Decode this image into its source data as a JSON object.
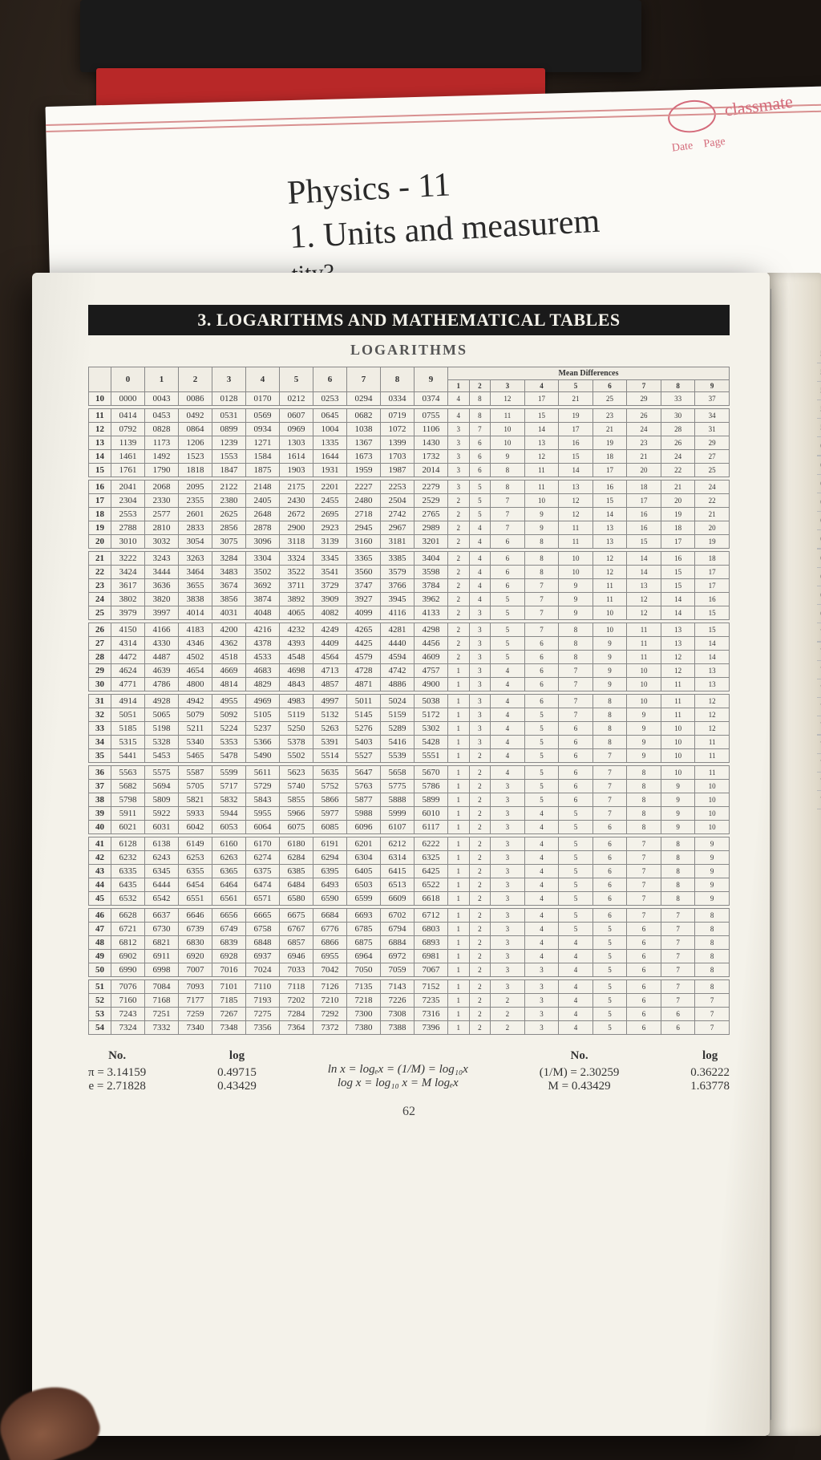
{
  "chapter_title": "3. LOGARITHMS AND MATHEMATICAL TABLES",
  "subtitle": "LOGARITHMS",
  "handwriting_line1": "Physics - 11",
  "handwriting_line2": "1. Units and measurem",
  "handwriting_line3": "                       tity?",
  "stamp_text1": "classmate",
  "stamp_text2": "Date",
  "stamp_text3": "Page",
  "meandiff_header": "Mean Differences",
  "col_headers": [
    "0",
    "1",
    "2",
    "3",
    "4",
    "5",
    "6",
    "7",
    "8",
    "9"
  ],
  "diff_headers": [
    "1",
    "2",
    "3",
    "4",
    "5",
    "6",
    "7",
    "8",
    "9"
  ],
  "page_number": "62",
  "constants": {
    "left": {
      "hd1": "No.",
      "r1": "π = 3.14159",
      "r2": "e = 2.71828"
    },
    "left2": {
      "hd1": "log",
      "r1": "0.49715",
      "r2": "0.43429"
    },
    "mid": {
      "r1": "ln x = logₑx = (1/M) = log₁₀x",
      "r2": "log x = log₁₀ x = M logₑx"
    },
    "right": {
      "hd1": "No.",
      "r1": "(1/M) = 2.30259",
      "r2": "M = 0.43429"
    },
    "right2": {
      "hd1": "log",
      "r1": "0.36222",
      "r2": "1.63778"
    }
  },
  "right_strip": [
    "55",
    "56",
    "57",
    "58",
    "59",
    "60",
    "",
    "61",
    "62",
    "63",
    "64",
    "65",
    "",
    "66",
    "67",
    "68",
    "69",
    "70",
    "",
    "71",
    "72",
    "73",
    "74",
    "75",
    "",
    "76",
    "77",
    "78",
    "79"
  ],
  "rows": [
    {
      "n": "10",
      "v": [
        "0000",
        "0043",
        "0086",
        "0128",
        "0170",
        "0212",
        "0253",
        "0294",
        "0334",
        "0374"
      ],
      "d": [
        "4",
        "8",
        "12",
        "17",
        "21",
        "25",
        "29",
        "33",
        "37"
      ]
    },
    {
      "n": "11",
      "v": [
        "0414",
        "0453",
        "0492",
        "0531",
        "0569",
        "0607",
        "0645",
        "0682",
        "0719",
        "0755"
      ],
      "d": [
        "4",
        "8",
        "11",
        "15",
        "19",
        "23",
        "26",
        "30",
        "34"
      ]
    },
    {
      "n": "12",
      "v": [
        "0792",
        "0828",
        "0864",
        "0899",
        "0934",
        "0969",
        "1004",
        "1038",
        "1072",
        "1106"
      ],
      "d": [
        "3",
        "7",
        "10",
        "14",
        "17",
        "21",
        "24",
        "28",
        "31"
      ]
    },
    {
      "n": "13",
      "v": [
        "1139",
        "1173",
        "1206",
        "1239",
        "1271",
        "1303",
        "1335",
        "1367",
        "1399",
        "1430"
      ],
      "d": [
        "3",
        "6",
        "10",
        "13",
        "16",
        "19",
        "23",
        "26",
        "29"
      ]
    },
    {
      "n": "14",
      "v": [
        "1461",
        "1492",
        "1523",
        "1553",
        "1584",
        "1614",
        "1644",
        "1673",
        "1703",
        "1732"
      ],
      "d": [
        "3",
        "6",
        "9",
        "12",
        "15",
        "18",
        "21",
        "24",
        "27"
      ]
    },
    {
      "n": "15",
      "v": [
        "1761",
        "1790",
        "1818",
        "1847",
        "1875",
        "1903",
        "1931",
        "1959",
        "1987",
        "2014"
      ],
      "d": [
        "3",
        "6",
        "8",
        "11",
        "14",
        "17",
        "20",
        "22",
        "25"
      ]
    },
    {
      "n": "16",
      "v": [
        "2041",
        "2068",
        "2095",
        "2122",
        "2148",
        "2175",
        "2201",
        "2227",
        "2253",
        "2279"
      ],
      "d": [
        "3",
        "5",
        "8",
        "11",
        "13",
        "16",
        "18",
        "21",
        "24"
      ]
    },
    {
      "n": "17",
      "v": [
        "2304",
        "2330",
        "2355",
        "2380",
        "2405",
        "2430",
        "2455",
        "2480",
        "2504",
        "2529"
      ],
      "d": [
        "2",
        "5",
        "7",
        "10",
        "12",
        "15",
        "17",
        "20",
        "22"
      ]
    },
    {
      "n": "18",
      "v": [
        "2553",
        "2577",
        "2601",
        "2625",
        "2648",
        "2672",
        "2695",
        "2718",
        "2742",
        "2765"
      ],
      "d": [
        "2",
        "5",
        "7",
        "9",
        "12",
        "14",
        "16",
        "19",
        "21"
      ]
    },
    {
      "n": "19",
      "v": [
        "2788",
        "2810",
        "2833",
        "2856",
        "2878",
        "2900",
        "2923",
        "2945",
        "2967",
        "2989"
      ],
      "d": [
        "2",
        "4",
        "7",
        "9",
        "11",
        "13",
        "16",
        "18",
        "20"
      ]
    },
    {
      "n": "20",
      "v": [
        "3010",
        "3032",
        "3054",
        "3075",
        "3096",
        "3118",
        "3139",
        "3160",
        "3181",
        "3201"
      ],
      "d": [
        "2",
        "4",
        "6",
        "8",
        "11",
        "13",
        "15",
        "17",
        "19"
      ]
    },
    {
      "n": "21",
      "v": [
        "3222",
        "3243",
        "3263",
        "3284",
        "3304",
        "3324",
        "3345",
        "3365",
        "3385",
        "3404"
      ],
      "d": [
        "2",
        "4",
        "6",
        "8",
        "10",
        "12",
        "14",
        "16",
        "18"
      ]
    },
    {
      "n": "22",
      "v": [
        "3424",
        "3444",
        "3464",
        "3483",
        "3502",
        "3522",
        "3541",
        "3560",
        "3579",
        "3598"
      ],
      "d": [
        "2",
        "4",
        "6",
        "8",
        "10",
        "12",
        "14",
        "15",
        "17"
      ]
    },
    {
      "n": "23",
      "v": [
        "3617",
        "3636",
        "3655",
        "3674",
        "3692",
        "3711",
        "3729",
        "3747",
        "3766",
        "3784"
      ],
      "d": [
        "2",
        "4",
        "6",
        "7",
        "9",
        "11",
        "13",
        "15",
        "17"
      ]
    },
    {
      "n": "24",
      "v": [
        "3802",
        "3820",
        "3838",
        "3856",
        "3874",
        "3892",
        "3909",
        "3927",
        "3945",
        "3962"
      ],
      "d": [
        "2",
        "4",
        "5",
        "7",
        "9",
        "11",
        "12",
        "14",
        "16"
      ]
    },
    {
      "n": "25",
      "v": [
        "3979",
        "3997",
        "4014",
        "4031",
        "4048",
        "4065",
        "4082",
        "4099",
        "4116",
        "4133"
      ],
      "d": [
        "2",
        "3",
        "5",
        "7",
        "9",
        "10",
        "12",
        "14",
        "15"
      ]
    },
    {
      "n": "26",
      "v": [
        "4150",
        "4166",
        "4183",
        "4200",
        "4216",
        "4232",
        "4249",
        "4265",
        "4281",
        "4298"
      ],
      "d": [
        "2",
        "3",
        "5",
        "7",
        "8",
        "10",
        "11",
        "13",
        "15"
      ]
    },
    {
      "n": "27",
      "v": [
        "4314",
        "4330",
        "4346",
        "4362",
        "4378",
        "4393",
        "4409",
        "4425",
        "4440",
        "4456"
      ],
      "d": [
        "2",
        "3",
        "5",
        "6",
        "8",
        "9",
        "11",
        "13",
        "14"
      ]
    },
    {
      "n": "28",
      "v": [
        "4472",
        "4487",
        "4502",
        "4518",
        "4533",
        "4548",
        "4564",
        "4579",
        "4594",
        "4609"
      ],
      "d": [
        "2",
        "3",
        "5",
        "6",
        "8",
        "9",
        "11",
        "12",
        "14"
      ]
    },
    {
      "n": "29",
      "v": [
        "4624",
        "4639",
        "4654",
        "4669",
        "4683",
        "4698",
        "4713",
        "4728",
        "4742",
        "4757"
      ],
      "d": [
        "1",
        "3",
        "4",
        "6",
        "7",
        "9",
        "10",
        "12",
        "13"
      ]
    },
    {
      "n": "30",
      "v": [
        "4771",
        "4786",
        "4800",
        "4814",
        "4829",
        "4843",
        "4857",
        "4871",
        "4886",
        "4900"
      ],
      "d": [
        "1",
        "3",
        "4",
        "6",
        "7",
        "9",
        "10",
        "11",
        "13"
      ]
    },
    {
      "n": "31",
      "v": [
        "4914",
        "4928",
        "4942",
        "4955",
        "4969",
        "4983",
        "4997",
        "5011",
        "5024",
        "5038"
      ],
      "d": [
        "1",
        "3",
        "4",
        "6",
        "7",
        "8",
        "10",
        "11",
        "12"
      ]
    },
    {
      "n": "32",
      "v": [
        "5051",
        "5065",
        "5079",
        "5092",
        "5105",
        "5119",
        "5132",
        "5145",
        "5159",
        "5172"
      ],
      "d": [
        "1",
        "3",
        "4",
        "5",
        "7",
        "8",
        "9",
        "11",
        "12"
      ]
    },
    {
      "n": "33",
      "v": [
        "5185",
        "5198",
        "5211",
        "5224",
        "5237",
        "5250",
        "5263",
        "5276",
        "5289",
        "5302"
      ],
      "d": [
        "1",
        "3",
        "4",
        "5",
        "6",
        "8",
        "9",
        "10",
        "12"
      ]
    },
    {
      "n": "34",
      "v": [
        "5315",
        "5328",
        "5340",
        "5353",
        "5366",
        "5378",
        "5391",
        "5403",
        "5416",
        "5428"
      ],
      "d": [
        "1",
        "3",
        "4",
        "5",
        "6",
        "8",
        "9",
        "10",
        "11"
      ]
    },
    {
      "n": "35",
      "v": [
        "5441",
        "5453",
        "5465",
        "5478",
        "5490",
        "5502",
        "5514",
        "5527",
        "5539",
        "5551"
      ],
      "d": [
        "1",
        "2",
        "4",
        "5",
        "6",
        "7",
        "9",
        "10",
        "11"
      ]
    },
    {
      "n": "36",
      "v": [
        "5563",
        "5575",
        "5587",
        "5599",
        "5611",
        "5623",
        "5635",
        "5647",
        "5658",
        "5670"
      ],
      "d": [
        "1",
        "2",
        "4",
        "5",
        "6",
        "7",
        "8",
        "10",
        "11"
      ]
    },
    {
      "n": "37",
      "v": [
        "5682",
        "5694",
        "5705",
        "5717",
        "5729",
        "5740",
        "5752",
        "5763",
        "5775",
        "5786"
      ],
      "d": [
        "1",
        "2",
        "3",
        "5",
        "6",
        "7",
        "8",
        "9",
        "10"
      ]
    },
    {
      "n": "38",
      "v": [
        "5798",
        "5809",
        "5821",
        "5832",
        "5843",
        "5855",
        "5866",
        "5877",
        "5888",
        "5899"
      ],
      "d": [
        "1",
        "2",
        "3",
        "5",
        "6",
        "7",
        "8",
        "9",
        "10"
      ]
    },
    {
      "n": "39",
      "v": [
        "5911",
        "5922",
        "5933",
        "5944",
        "5955",
        "5966",
        "5977",
        "5988",
        "5999",
        "6010"
      ],
      "d": [
        "1",
        "2",
        "3",
        "4",
        "5",
        "7",
        "8",
        "9",
        "10"
      ]
    },
    {
      "n": "40",
      "v": [
        "6021",
        "6031",
        "6042",
        "6053",
        "6064",
        "6075",
        "6085",
        "6096",
        "6107",
        "6117"
      ],
      "d": [
        "1",
        "2",
        "3",
        "4",
        "5",
        "6",
        "8",
        "9",
        "10"
      ]
    },
    {
      "n": "41",
      "v": [
        "6128",
        "6138",
        "6149",
        "6160",
        "6170",
        "6180",
        "6191",
        "6201",
        "6212",
        "6222"
      ],
      "d": [
        "1",
        "2",
        "3",
        "4",
        "5",
        "6",
        "7",
        "8",
        "9"
      ]
    },
    {
      "n": "42",
      "v": [
        "6232",
        "6243",
        "6253",
        "6263",
        "6274",
        "6284",
        "6294",
        "6304",
        "6314",
        "6325"
      ],
      "d": [
        "1",
        "2",
        "3",
        "4",
        "5",
        "6",
        "7",
        "8",
        "9"
      ]
    },
    {
      "n": "43",
      "v": [
        "6335",
        "6345",
        "6355",
        "6365",
        "6375",
        "6385",
        "6395",
        "6405",
        "6415",
        "6425"
      ],
      "d": [
        "1",
        "2",
        "3",
        "4",
        "5",
        "6",
        "7",
        "8",
        "9"
      ]
    },
    {
      "n": "44",
      "v": [
        "6435",
        "6444",
        "6454",
        "6464",
        "6474",
        "6484",
        "6493",
        "6503",
        "6513",
        "6522"
      ],
      "d": [
        "1",
        "2",
        "3",
        "4",
        "5",
        "6",
        "7",
        "8",
        "9"
      ]
    },
    {
      "n": "45",
      "v": [
        "6532",
        "6542",
        "6551",
        "6561",
        "6571",
        "6580",
        "6590",
        "6599",
        "6609",
        "6618"
      ],
      "d": [
        "1",
        "2",
        "3",
        "4",
        "5",
        "6",
        "7",
        "8",
        "9"
      ]
    },
    {
      "n": "46",
      "v": [
        "6628",
        "6637",
        "6646",
        "6656",
        "6665",
        "6675",
        "6684",
        "6693",
        "6702",
        "6712"
      ],
      "d": [
        "1",
        "2",
        "3",
        "4",
        "5",
        "6",
        "7",
        "7",
        "8"
      ]
    },
    {
      "n": "47",
      "v": [
        "6721",
        "6730",
        "6739",
        "6749",
        "6758",
        "6767",
        "6776",
        "6785",
        "6794",
        "6803"
      ],
      "d": [
        "1",
        "2",
        "3",
        "4",
        "5",
        "5",
        "6",
        "7",
        "8"
      ]
    },
    {
      "n": "48",
      "v": [
        "6812",
        "6821",
        "6830",
        "6839",
        "6848",
        "6857",
        "6866",
        "6875",
        "6884",
        "6893"
      ],
      "d": [
        "1",
        "2",
        "3",
        "4",
        "4",
        "5",
        "6",
        "7",
        "8"
      ]
    },
    {
      "n": "49",
      "v": [
        "6902",
        "6911",
        "6920",
        "6928",
        "6937",
        "6946",
        "6955",
        "6964",
        "6972",
        "6981"
      ],
      "d": [
        "1",
        "2",
        "3",
        "4",
        "4",
        "5",
        "6",
        "7",
        "8"
      ]
    },
    {
      "n": "50",
      "v": [
        "6990",
        "6998",
        "7007",
        "7016",
        "7024",
        "7033",
        "7042",
        "7050",
        "7059",
        "7067"
      ],
      "d": [
        "1",
        "2",
        "3",
        "3",
        "4",
        "5",
        "6",
        "7",
        "8"
      ]
    },
    {
      "n": "51",
      "v": [
        "7076",
        "7084",
        "7093",
        "7101",
        "7110",
        "7118",
        "7126",
        "7135",
        "7143",
        "7152"
      ],
      "d": [
        "1",
        "2",
        "3",
        "3",
        "4",
        "5",
        "6",
        "7",
        "8"
      ]
    },
    {
      "n": "52",
      "v": [
        "7160",
        "7168",
        "7177",
        "7185",
        "7193",
        "7202",
        "7210",
        "7218",
        "7226",
        "7235"
      ],
      "d": [
        "1",
        "2",
        "2",
        "3",
        "4",
        "5",
        "6",
        "7",
        "7"
      ]
    },
    {
      "n": "53",
      "v": [
        "7243",
        "7251",
        "7259",
        "7267",
        "7275",
        "7284",
        "7292",
        "7300",
        "7308",
        "7316"
      ],
      "d": [
        "1",
        "2",
        "2",
        "3",
        "4",
        "5",
        "6",
        "6",
        "7"
      ]
    },
    {
      "n": "54",
      "v": [
        "7324",
        "7332",
        "7340",
        "7348",
        "7356",
        "7364",
        "7372",
        "7380",
        "7388",
        "7396"
      ],
      "d": [
        "1",
        "2",
        "2",
        "3",
        "4",
        "5",
        "6",
        "6",
        "7"
      ]
    }
  ],
  "group_breaks": [
    1,
    6,
    11,
    16,
    21,
    26,
    31,
    36,
    41
  ]
}
